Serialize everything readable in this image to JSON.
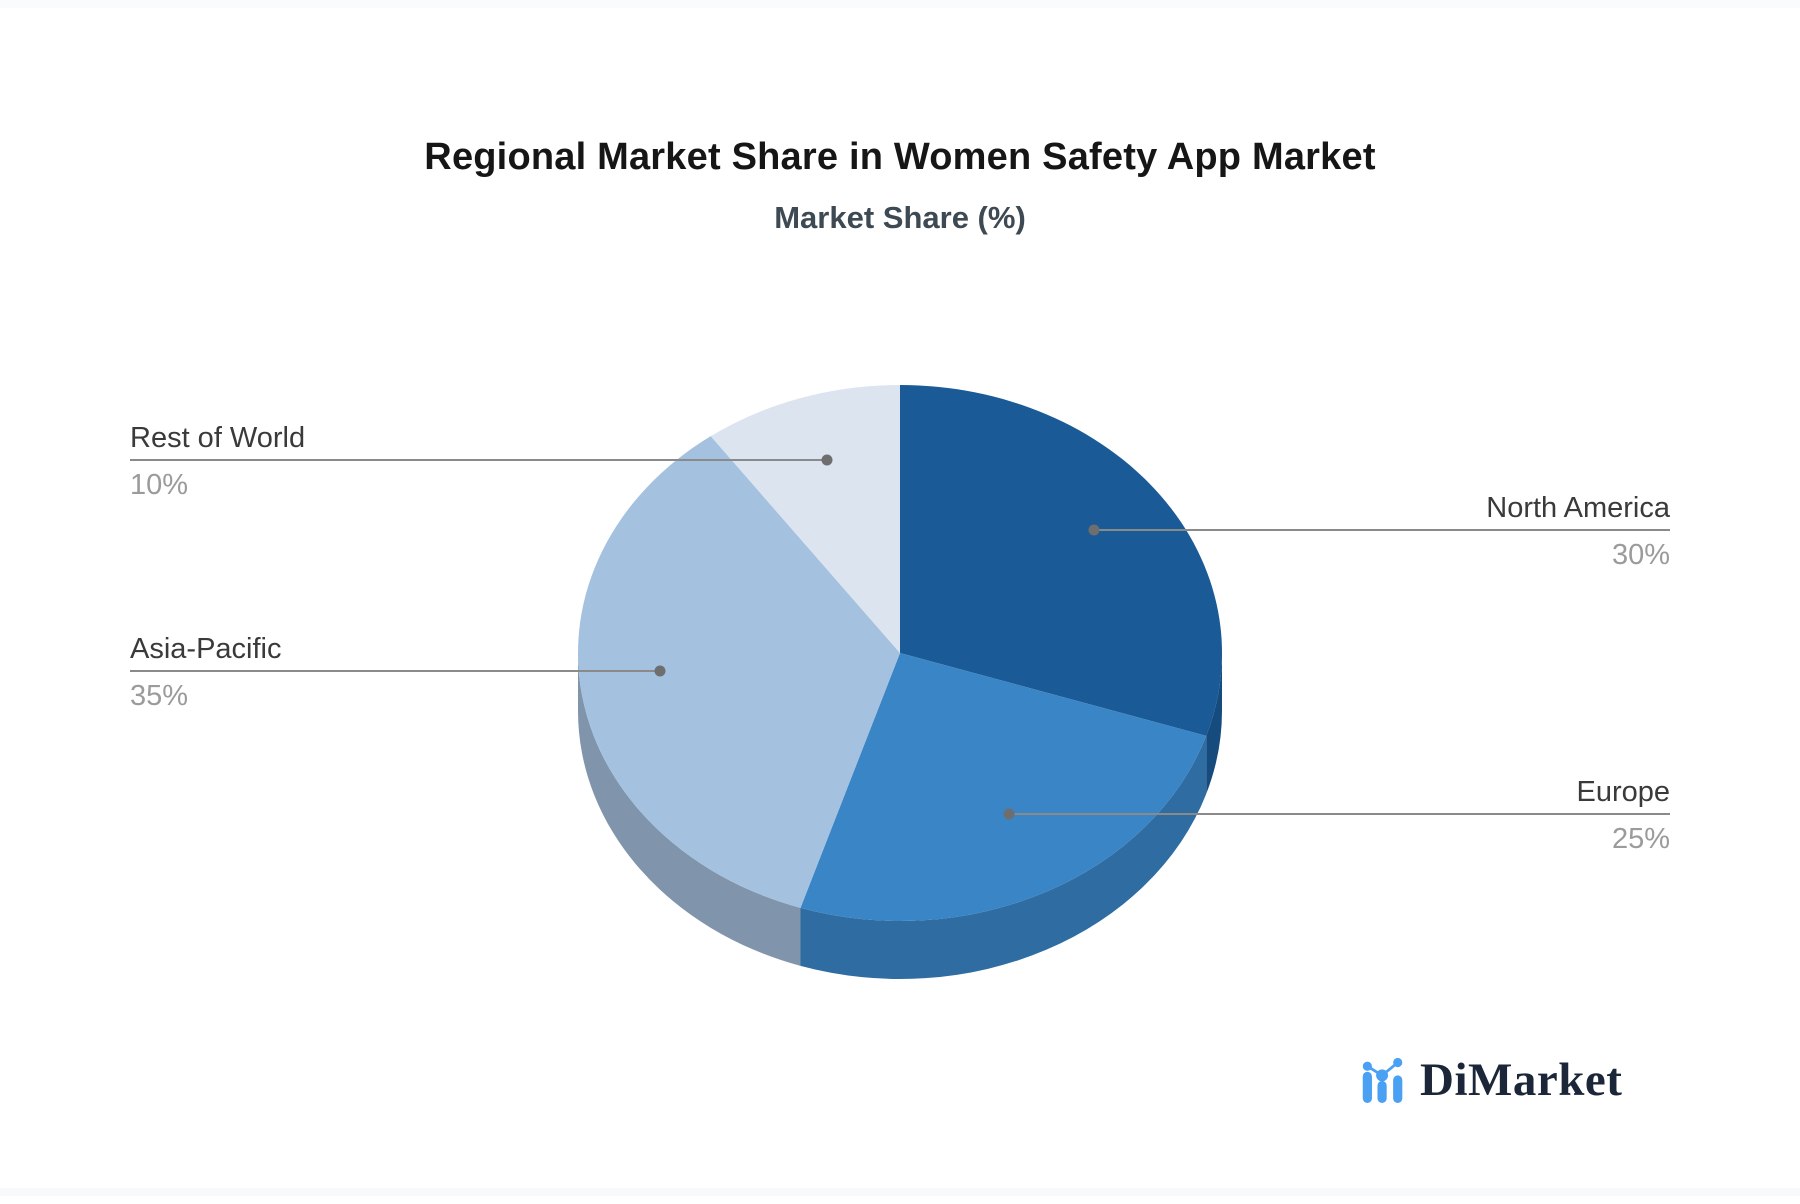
{
  "header": {
    "title": "Regional Market Share in Women Safety App Market",
    "subtitle": "Market Share (%)"
  },
  "chart_data": {
    "type": "pie",
    "title": "Regional Market Share in Women Safety App Market",
    "subtitle": "Market Share (%)",
    "unit": "%",
    "start_angle_deg": 0,
    "direction": "clockwise",
    "effect": "3d-depth",
    "legend_position": "callout-labels",
    "slices": [
      {
        "label": "North America",
        "value": 30,
        "pct_label": "30%",
        "color": "#1A5A96",
        "depth_color": "#164B7E"
      },
      {
        "label": "Europe",
        "value": 25,
        "pct_label": "25%",
        "color": "#3A85C6",
        "depth_color": "#2E6CA2"
      },
      {
        "label": "Asia-Pacific",
        "value": 35,
        "pct_label": "35%",
        "color": "#A4C2DF",
        "depth_color": "#8095AC"
      },
      {
        "label": "Rest of World",
        "value": 10,
        "pct_label": "10%",
        "color": "#DCE4F0",
        "depth_color": "#B9C2D2"
      }
    ],
    "callout_style": {
      "line_color": "#8A8A8A",
      "dot_color": "#6E6E6E",
      "label_color": "#3A3A3A",
      "pct_color": "#9B9B9B"
    }
  },
  "branding": {
    "logo_text": "DiMarket",
    "logo_icon": "bar-line-chart-icon",
    "logo_text_color": "#1B2638",
    "logo_icon_color": "#4AA1F3"
  }
}
